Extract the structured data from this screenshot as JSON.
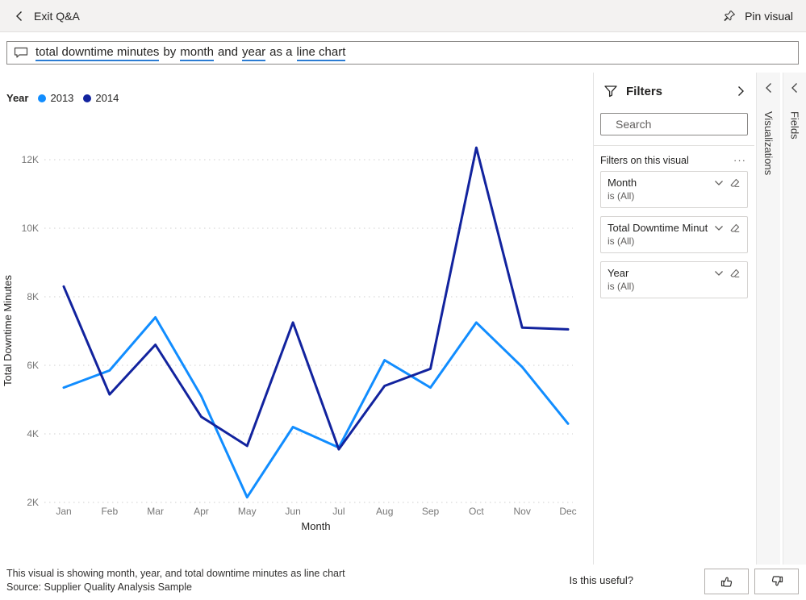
{
  "app": {
    "exit_label": "Exit Q&A",
    "pin_label": "Pin visual"
  },
  "qa": {
    "tokens": [
      {
        "text": "total downtime minutes",
        "underline": true
      },
      {
        "text": "by",
        "underline": false
      },
      {
        "text": "month",
        "underline": true
      },
      {
        "text": "and",
        "underline": false
      },
      {
        "text": "year",
        "underline": true
      },
      {
        "text": "as a",
        "underline": false
      },
      {
        "text": "line chart",
        "underline": true
      }
    ]
  },
  "icons": {
    "back": "chevron-left",
    "pin": "pushpin",
    "qa_input": "speech-bubble",
    "filters": "funnel",
    "filters_collapse": "chevron-right",
    "search": "magnifier",
    "more": "ellipsis",
    "card_expand": "chevron-down",
    "card_clear": "eraser",
    "strip_expand": "chevron-left",
    "feedback_positive": "thumbs-up",
    "feedback_negative": "thumbs-down"
  },
  "filters_panel": {
    "title": "Filters",
    "search_placeholder": "Search",
    "section_label": "Filters on this visual",
    "more_label": "···",
    "cards": [
      {
        "name": "Month",
        "condition": "is (All)"
      },
      {
        "name": "Total Downtime Minut...",
        "condition": "is (All)"
      },
      {
        "name": "Year",
        "condition": "is (All)"
      }
    ]
  },
  "side_strips": [
    {
      "label": "Visualizations"
    },
    {
      "label": "Fields"
    }
  ],
  "footer": {
    "description": "This visual is showing month, year, and total downtime minutes as line chart",
    "source": "Source: Supplier Quality Analysis Sample",
    "useful_label": "Is this useful?"
  },
  "colors": {
    "series_2013": "#118DFF",
    "series_2014": "#12239E",
    "underline": "#2B7CD3",
    "topbar_bg": "#f3f2f1"
  },
  "chart_data": {
    "type": "line",
    "legend_title": "Year",
    "xlabel": "Month",
    "ylabel": "Total Downtime Minutes",
    "categories": [
      "Jan",
      "Feb",
      "Mar",
      "Apr",
      "May",
      "Jun",
      "Jul",
      "Aug",
      "Sep",
      "Oct",
      "Nov",
      "Dec"
    ],
    "series": [
      {
        "name": "2013",
        "color": "#118DFF",
        "values": [
          5350,
          5850,
          7400,
          5100,
          2150,
          4200,
          3600,
          6150,
          5350,
          7250,
          5950,
          4300
        ]
      },
      {
        "name": "2014",
        "color": "#12239E",
        "values": [
          8300,
          5150,
          6600,
          4500,
          3650,
          7250,
          3550,
          5400,
          5900,
          12350,
          7100,
          7050
        ]
      }
    ],
    "ylim": [
      2000,
      12000
    ],
    "ytick_step": 2000,
    "ytick_labels": [
      "2K",
      "4K",
      "6K",
      "8K",
      "10K",
      "12K"
    ],
    "grid": "dotted-horizontal",
    "legend_position": "top-left"
  }
}
